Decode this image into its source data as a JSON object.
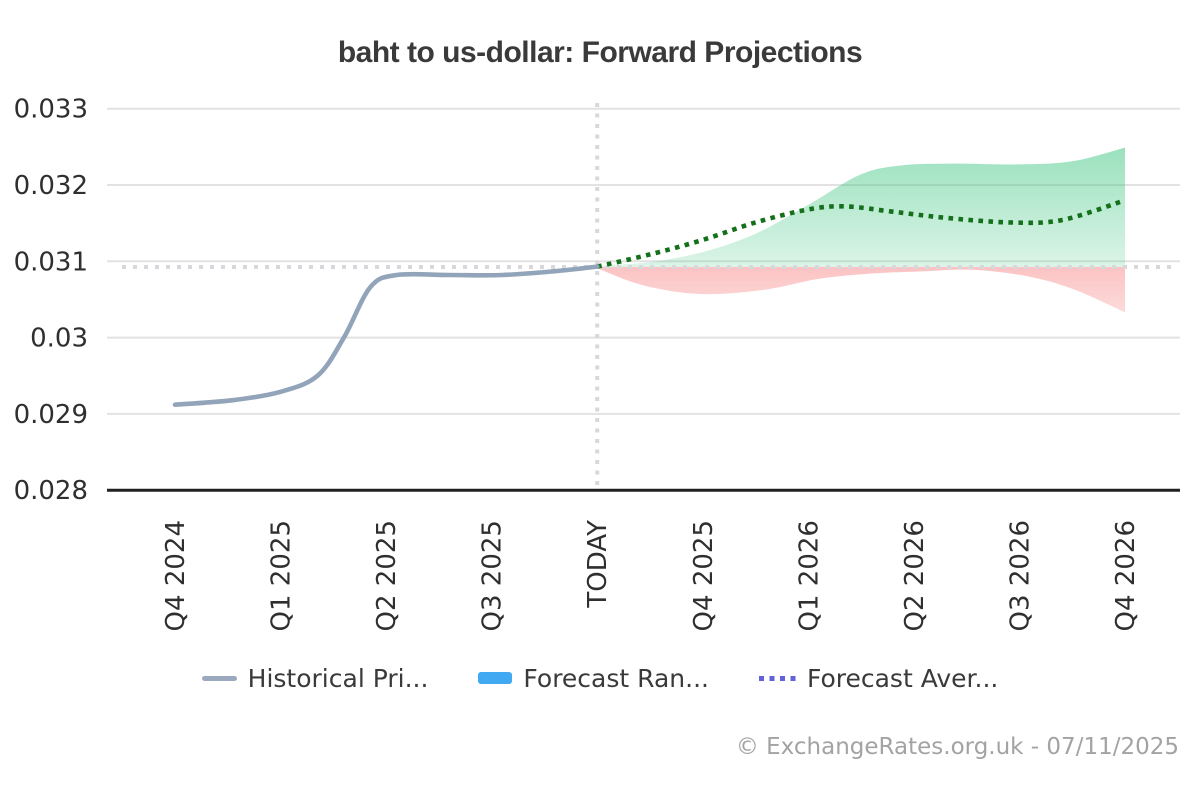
{
  "title": "baht to us-dollar: Forward Projections",
  "watermark": "© ExchangeRates.org.uk - 07/11/2025",
  "legend": {
    "historical_label": "Historical Pri...",
    "range_label": "Forecast Ran...",
    "average_label": "Forecast Aver..."
  },
  "colors": {
    "historical_line": "#92a4b9",
    "forecast_average_line": "#14701a",
    "band_green_base": "55,195,124",
    "band_pink_base": "246,112,112",
    "legend_range_swatch": "#41a9f1",
    "legend_average_swatch": "#6363d9",
    "legend_historical_swatch": "#9aa9bd",
    "grid": "#e2e2e2",
    "axis": "#202020",
    "today_guides": "#d8d8dc",
    "title_text": "#3a3a3a",
    "tick_text": "#2f2f2f",
    "legend_text": "#3a3a3a",
    "watermark_text": "#a3a3a3"
  },
  "chart_data": {
    "type": "line",
    "subtype": "historical-line with forecast band (upper/lower) and dotted average forecast",
    "title": "baht to us-dollar: Forward Projections",
    "x_categories": [
      "Q4 2024",
      "Q1 2025",
      "Q2 2025",
      "Q3 2025",
      "TODAY",
      "Q4 2025",
      "Q1 2026",
      "Q2 2026",
      "Q3 2026",
      "Q4 2026"
    ],
    "y_ticks": [
      0.033,
      0.032,
      0.031,
      0.03,
      0.029,
      0.028
    ],
    "y_tick_labels": [
      "0.033",
      "0.032",
      "0.031",
      "0.03",
      "0.029",
      "0.028"
    ],
    "ylim": [
      0.028,
      0.0333
    ],
    "grid": "horizontal-only",
    "legend_position": "bottom",
    "today_index": 4,
    "today_rate_line": 0.030925,
    "series": [
      {
        "name": "Historical Price",
        "categories": [
          "Q4 2024",
          "Q1 2025",
          "Q2 2025",
          "Q3 2025",
          "TODAY"
        ],
        "values": [
          0.0291,
          0.0293,
          0.0308,
          0.0308,
          0.0309
        ]
      },
      {
        "name": "Forecast Average",
        "categories": [
          "TODAY",
          "Q4 2025",
          "Q1 2026",
          "Q2 2026",
          "Q3 2026",
          "Q4 2026"
        ],
        "values": [
          0.0309,
          0.0313,
          0.0317,
          0.0316,
          0.0315,
          0.0318
        ]
      },
      {
        "name": "Forecast Range Upper",
        "categories": [
          "TODAY",
          "Q4 2025",
          "Q1 2026",
          "Q2 2026",
          "Q3 2026",
          "Q4 2026"
        ],
        "values": [
          0.0309,
          0.0311,
          0.0317,
          0.0323,
          0.0323,
          0.0325
        ]
      },
      {
        "name": "Forecast Range Lower",
        "categories": [
          "TODAY",
          "Q4 2025",
          "Q1 2026",
          "Q2 2026",
          "Q3 2026",
          "Q4 2026"
        ],
        "values": [
          0.0309,
          0.0306,
          0.0308,
          0.0309,
          0.0308,
          0.0303
        ]
      }
    ],
    "curve_points": {
      "historical": [
        [
          0,
          0.02912
        ],
        [
          0.55,
          0.02918
        ],
        [
          1.0,
          0.02929
        ],
        [
          1.35,
          0.0295
        ],
        [
          1.6,
          0.03
        ],
        [
          1.85,
          0.03066
        ],
        [
          2.1,
          0.03082
        ],
        [
          2.6,
          0.03082
        ],
        [
          3.1,
          0.03082
        ],
        [
          3.6,
          0.03087
        ],
        [
          4,
          0.03093
        ]
      ],
      "average": [
        [
          4,
          0.03093
        ],
        [
          4.5,
          0.03109
        ],
        [
          5,
          0.03128
        ],
        [
          5.5,
          0.03151
        ],
        [
          6,
          0.03168
        ],
        [
          6.35,
          0.03172
        ],
        [
          6.8,
          0.03165
        ],
        [
          7.3,
          0.03157
        ],
        [
          7.9,
          0.03151
        ],
        [
          8.4,
          0.03154
        ],
        [
          9,
          0.0318
        ]
      ],
      "upper": [
        [
          4,
          0.03094
        ],
        [
          4.5,
          0.03099
        ],
        [
          5,
          0.03112
        ],
        [
          5.5,
          0.03136
        ],
        [
          6,
          0.03174
        ],
        [
          6.5,
          0.03214
        ],
        [
          6.9,
          0.03226
        ],
        [
          7.4,
          0.03228
        ],
        [
          8,
          0.03227
        ],
        [
          8.5,
          0.03231
        ],
        [
          9,
          0.03249
        ]
      ],
      "lower": [
        [
          4,
          0.03091
        ],
        [
          4.45,
          0.03068
        ],
        [
          5,
          0.03057
        ],
        [
          5.6,
          0.03063
        ],
        [
          6.1,
          0.03077
        ],
        [
          6.6,
          0.03084
        ],
        [
          7.1,
          0.03087
        ],
        [
          7.55,
          0.03089
        ],
        [
          8.05,
          0.03081
        ],
        [
          8.5,
          0.03064
        ],
        [
          9,
          0.03033
        ]
      ]
    }
  }
}
